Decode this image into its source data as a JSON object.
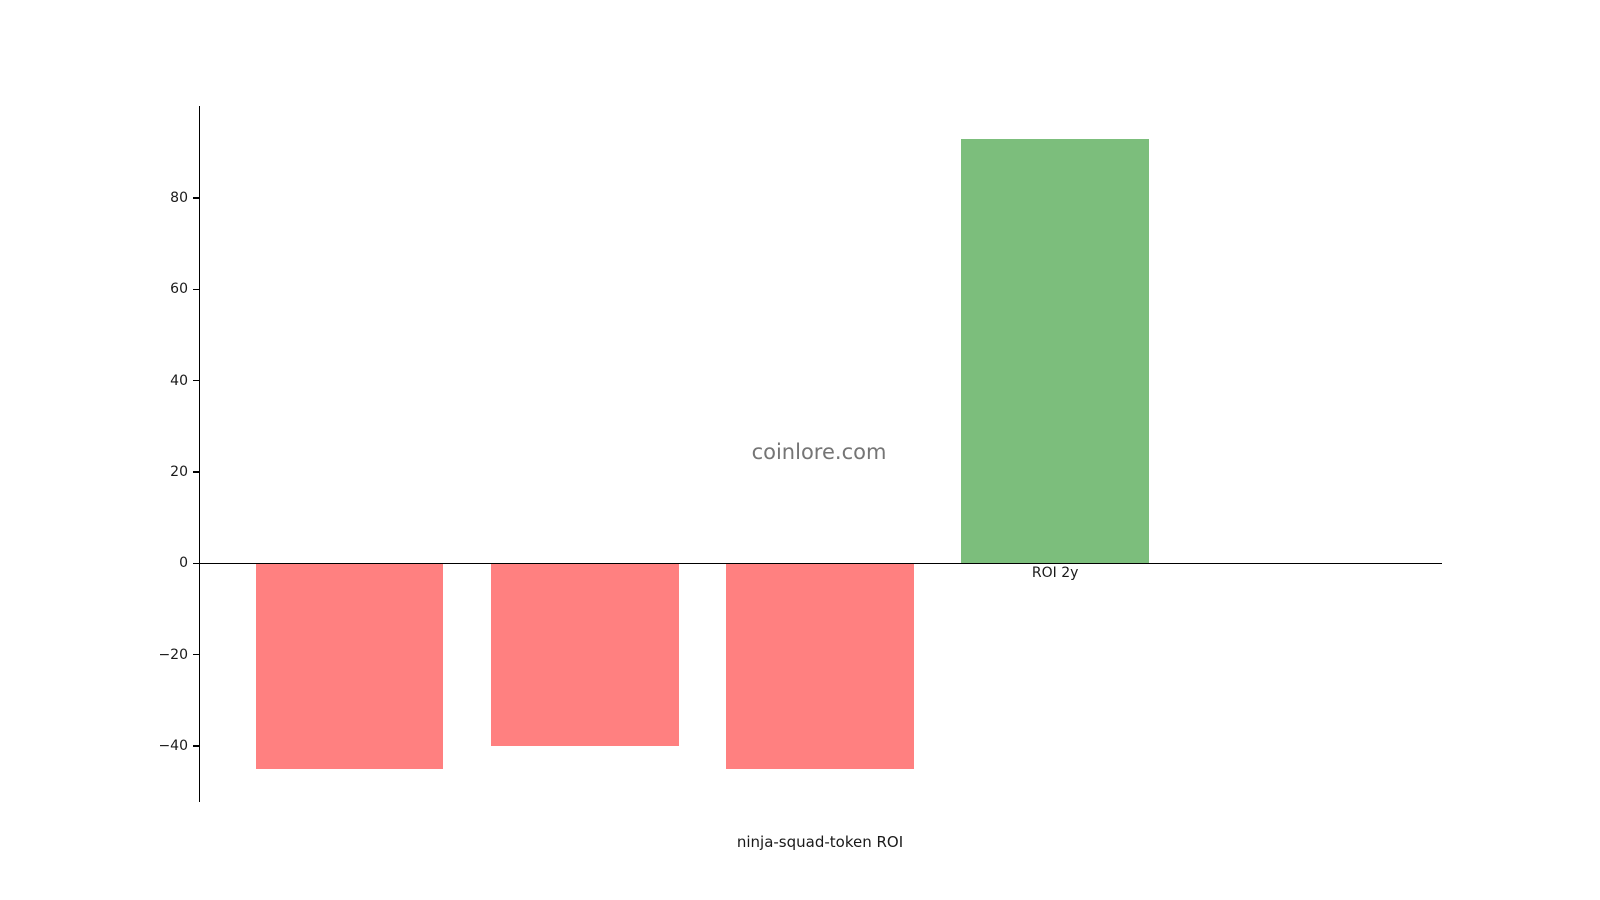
{
  "watermark": "coinlore.com",
  "chart_data": {
    "type": "bar",
    "title": "",
    "xlabel": "ninja-squad-token ROI",
    "ylabel": "",
    "categories": [
      "",
      "",
      "",
      "ROI 2y"
    ],
    "values": [
      -45,
      -40,
      -45,
      93
    ],
    "yticks": [
      80,
      60,
      40,
      20,
      0,
      -20,
      -40
    ],
    "ylim": [
      -52,
      100
    ],
    "grid": false,
    "legend": "none",
    "colors": {
      "positive_bar": "#7cbe7c",
      "negative_bar": "#ff8080",
      "axis": "#000000",
      "tick_text": "#1a1a1a",
      "watermark_text": "#757575"
    }
  }
}
